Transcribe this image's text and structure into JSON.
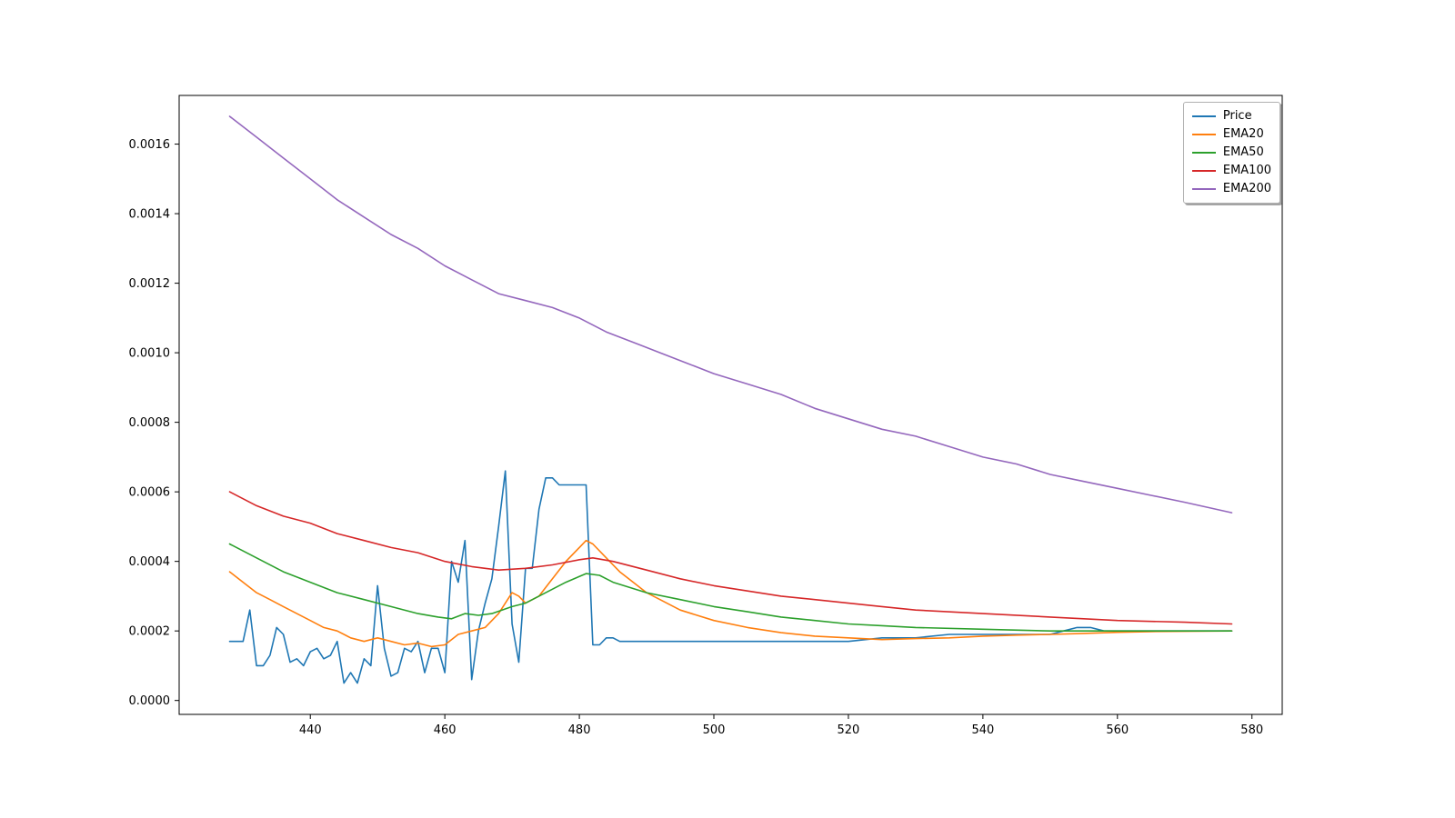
{
  "chart_data": {
    "type": "line",
    "title": "",
    "xlabel": "",
    "ylabel": "",
    "xlim": [
      420.5,
      584.5
    ],
    "ylim": [
      -4e-05,
      0.00174
    ],
    "xticks": [
      440,
      460,
      480,
      500,
      520,
      540,
      560,
      580
    ],
    "yticks": [
      0,
      0.0002,
      0.0004,
      0.0006,
      0.0008,
      0.001,
      0.0012,
      0.0014,
      0.0016
    ],
    "ytick_decimals": 4,
    "grid": false,
    "legend_position": "upper right",
    "series": [
      {
        "name": "Price",
        "color": "#1f77b4",
        "x": [
          428,
          429,
          430,
          431,
          432,
          433,
          434,
          435,
          436,
          437,
          438,
          439,
          440,
          441,
          442,
          443,
          444,
          445,
          446,
          447,
          448,
          449,
          450,
          451,
          452,
          453,
          454,
          455,
          456,
          457,
          458,
          459,
          460,
          461,
          462,
          463,
          464,
          465,
          466,
          467,
          468,
          469,
          470,
          471,
          472,
          473,
          474,
          475,
          476,
          477,
          478,
          479,
          480,
          481,
          482,
          483,
          484,
          485,
          486,
          488,
          490,
          495,
          500,
          505,
          510,
          515,
          520,
          525,
          530,
          535,
          540,
          545,
          550,
          552,
          554,
          556,
          558,
          560,
          565,
          570,
          577
        ],
        "y": [
          0.00017,
          0.00017,
          0.00017,
          0.00026,
          0.0001,
          0.0001,
          0.00013,
          0.00021,
          0.00019,
          0.00011,
          0.00012,
          0.0001,
          0.00014,
          0.00015,
          0.00012,
          0.00013,
          0.00017,
          5e-05,
          8e-05,
          5e-05,
          0.00012,
          0.0001,
          0.00033,
          0.00015,
          7e-05,
          8e-05,
          0.00015,
          0.00014,
          0.00017,
          8e-05,
          0.00015,
          0.00015,
          8e-05,
          0.0004,
          0.00034,
          0.00046,
          6e-05,
          0.0002,
          0.00028,
          0.00035,
          0.0005,
          0.00066,
          0.00022,
          0.00011,
          0.00038,
          0.00038,
          0.00055,
          0.00064,
          0.00064,
          0.00062,
          0.00062,
          0.00062,
          0.00062,
          0.00062,
          0.00016,
          0.00016,
          0.00018,
          0.00018,
          0.00017,
          0.00017,
          0.00017,
          0.00017,
          0.00017,
          0.00017,
          0.00017,
          0.00017,
          0.00017,
          0.00018,
          0.00018,
          0.00019,
          0.00019,
          0.00019,
          0.00019,
          0.0002,
          0.00021,
          0.00021,
          0.0002,
          0.0002,
          0.0002,
          0.0002,
          0.0002
        ]
      },
      {
        "name": "EMA20",
        "color": "#ff7f0e",
        "x": [
          428,
          430,
          432,
          434,
          436,
          438,
          440,
          442,
          444,
          446,
          448,
          450,
          452,
          454,
          456,
          458,
          460,
          462,
          464,
          466,
          468,
          469,
          470,
          471,
          472,
          474,
          476,
          478,
          480,
          481,
          482,
          484,
          486,
          488,
          490,
          492,
          495,
          500,
          505,
          510,
          515,
          520,
          525,
          530,
          535,
          540,
          545,
          550,
          555,
          560,
          565,
          570,
          577
        ],
        "y": [
          0.00037,
          0.00034,
          0.00031,
          0.00029,
          0.00027,
          0.00025,
          0.00023,
          0.00021,
          0.0002,
          0.00018,
          0.00017,
          0.00018,
          0.00017,
          0.00016,
          0.000165,
          0.000155,
          0.00016,
          0.00019,
          0.0002,
          0.00021,
          0.00025,
          0.00028,
          0.00031,
          0.0003,
          0.00028,
          0.0003,
          0.00035,
          0.0004,
          0.00044,
          0.00046,
          0.00045,
          0.00041,
          0.00037,
          0.00034,
          0.00031,
          0.00029,
          0.00026,
          0.00023,
          0.00021,
          0.000195,
          0.000185,
          0.00018,
          0.000175,
          0.000178,
          0.00018,
          0.000185,
          0.000188,
          0.00019,
          0.000193,
          0.000196,
          0.000198,
          0.000199,
          0.0002
        ]
      },
      {
        "name": "EMA50",
        "color": "#2ca02c",
        "x": [
          428,
          432,
          436,
          440,
          444,
          448,
          452,
          456,
          459,
          461,
          463,
          465,
          467,
          470,
          472,
          475,
          478,
          481,
          483,
          485,
          490,
          495,
          500,
          505,
          510,
          515,
          520,
          525,
          530,
          540,
          550,
          560,
          570,
          577
        ],
        "y": [
          0.00045,
          0.00041,
          0.00037,
          0.00034,
          0.00031,
          0.00029,
          0.00027,
          0.00025,
          0.00024,
          0.000235,
          0.00025,
          0.000245,
          0.00025,
          0.00027,
          0.00028,
          0.00031,
          0.00034,
          0.000365,
          0.00036,
          0.00034,
          0.00031,
          0.00029,
          0.00027,
          0.000255,
          0.00024,
          0.00023,
          0.00022,
          0.000215,
          0.00021,
          0.000205,
          0.0002,
          0.0002,
          0.0002,
          0.0002
        ]
      },
      {
        "name": "EMA100",
        "color": "#d62728",
        "x": [
          428,
          432,
          436,
          440,
          444,
          448,
          452,
          456,
          460,
          464,
          468,
          472,
          476,
          480,
          482,
          485,
          490,
          495,
          500,
          505,
          510,
          515,
          520,
          525,
          530,
          540,
          550,
          560,
          570,
          577
        ],
        "y": [
          0.0006,
          0.00056,
          0.00053,
          0.00051,
          0.00048,
          0.00046,
          0.00044,
          0.000425,
          0.0004,
          0.000385,
          0.000375,
          0.00038,
          0.00039,
          0.000405,
          0.00041,
          0.0004,
          0.000375,
          0.00035,
          0.00033,
          0.000315,
          0.0003,
          0.00029,
          0.00028,
          0.00027,
          0.00026,
          0.00025,
          0.00024,
          0.00023,
          0.000225,
          0.00022
        ]
      },
      {
        "name": "EMA200",
        "color": "#9467bd",
        "x": [
          428,
          432,
          436,
          440,
          444,
          448,
          452,
          456,
          460,
          464,
          468,
          472,
          476,
          480,
          484,
          488,
          492,
          496,
          500,
          505,
          510,
          515,
          520,
          525,
          530,
          535,
          540,
          545,
          550,
          555,
          560,
          565,
          570,
          577
        ],
        "y": [
          0.00168,
          0.00162,
          0.00156,
          0.0015,
          0.00144,
          0.00139,
          0.00134,
          0.0013,
          0.00125,
          0.00121,
          0.00117,
          0.00115,
          0.00113,
          0.0011,
          0.00106,
          0.00103,
          0.001,
          0.00097,
          0.00094,
          0.00091,
          0.00088,
          0.00084,
          0.00081,
          0.00078,
          0.00076,
          0.00073,
          0.0007,
          0.00068,
          0.00065,
          0.00063,
          0.00061,
          0.00059,
          0.00057,
          0.00054
        ]
      }
    ]
  }
}
